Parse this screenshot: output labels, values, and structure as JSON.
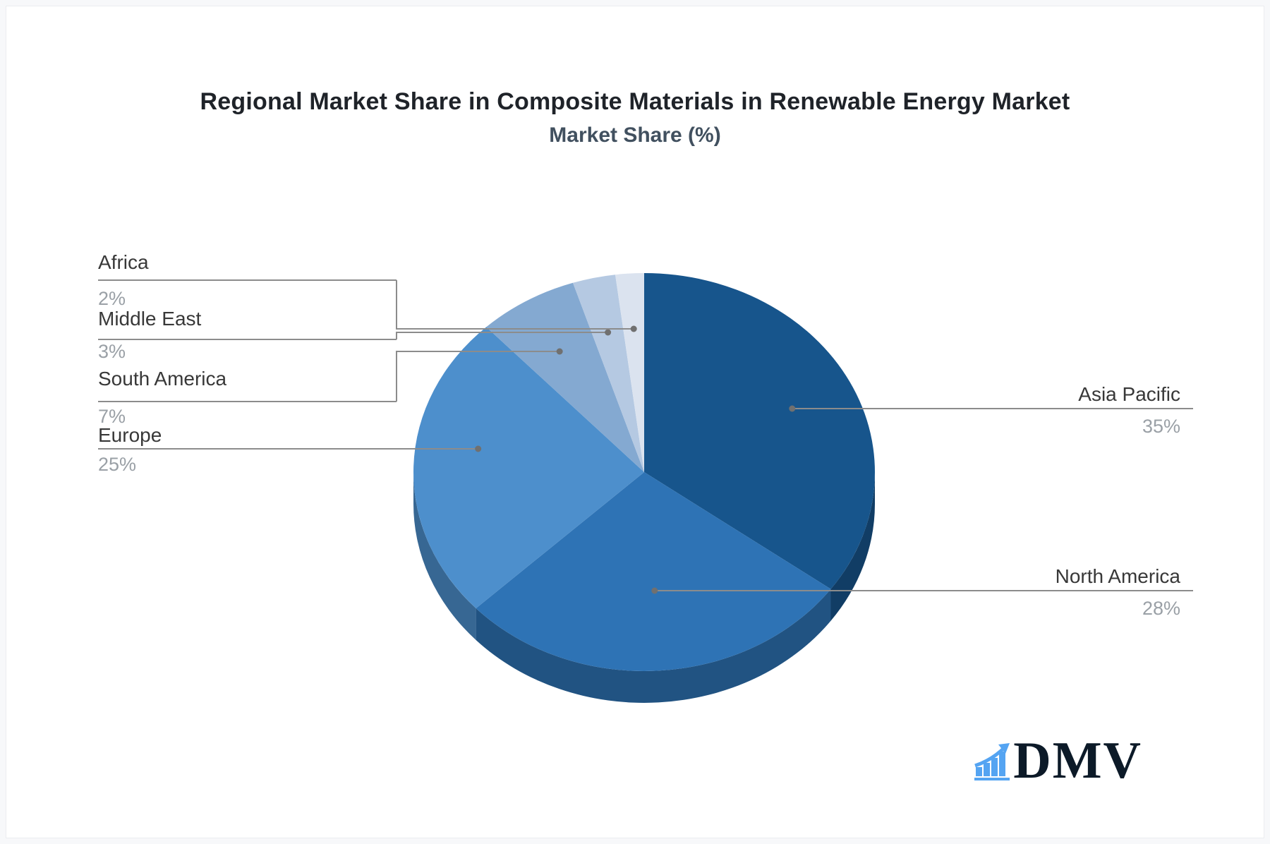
{
  "page": {
    "title": "Regional Market Share in Composite Materials in Renewable Energy Market",
    "subtitle": "Market Share (%)"
  },
  "logo": {
    "text": "DMV",
    "icon": "bar-chart-growth-arrow-icon",
    "icon_color": "#54a4f2",
    "text_color": "#0c1a28"
  },
  "colors": {
    "leader_line": "#8c8c8c",
    "dot": "#707070",
    "label_text": "#383838",
    "value_text": "#9aa0a6"
  },
  "chart_data": {
    "type": "pie",
    "style": "3d",
    "title": "Regional Market Share in Composite Materials in Renewable Energy Market",
    "subtitle": "Market Share (%)",
    "unit": "%",
    "start_angle_deg": -90,
    "direction": "clockwise",
    "legend_position": "callout-labels",
    "slices": [
      {
        "label": "Asia Pacific",
        "value": 35,
        "display_value": "35%",
        "color": "#17558c",
        "label_side": "right"
      },
      {
        "label": "North America",
        "value": 28,
        "display_value": "28%",
        "color": "#2e73b5",
        "label_side": "right"
      },
      {
        "label": "Europe",
        "value": 25,
        "display_value": "25%",
        "color": "#4d8fcc",
        "label_side": "left"
      },
      {
        "label": "South America",
        "value": 7,
        "display_value": "7%",
        "color": "#84a9d1",
        "label_side": "left"
      },
      {
        "label": "Middle East",
        "value": 3,
        "display_value": "3%",
        "color": "#b5c9e2",
        "label_side": "left"
      },
      {
        "label": "Africa",
        "value": 2,
        "display_value": "2%",
        "color": "#dbe3ef",
        "label_side": "left"
      }
    ]
  }
}
